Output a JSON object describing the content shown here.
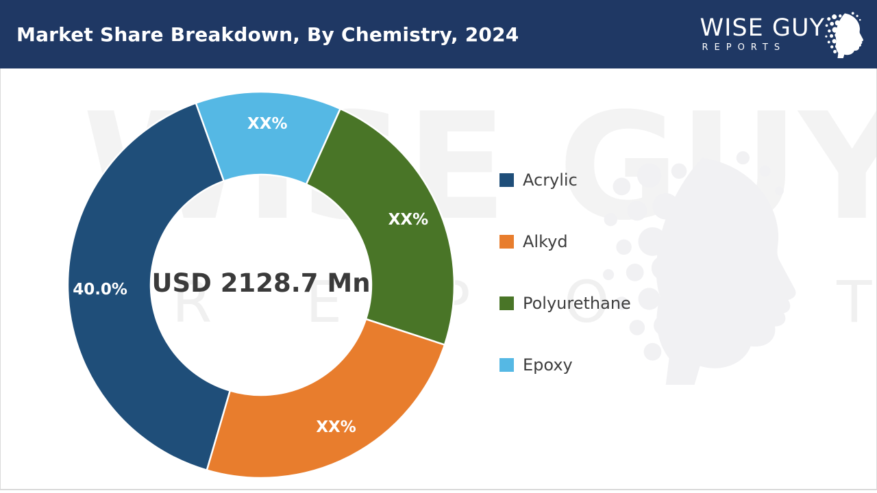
{
  "header": {
    "title": "Market Share Breakdown, By Chemistry, 2024",
    "bg_color": "#1F3864",
    "logo": {
      "line1": "WISE GUY",
      "line2": "REPORTS"
    }
  },
  "watermark": {
    "line1": "WISE GUY",
    "line2": "R E P O R T S"
  },
  "chart_data": {
    "type": "pie",
    "subtype": "donut",
    "title": "Market Share Breakdown, By Chemistry, 2024",
    "center_label": "USD 2128.7 Mn",
    "start_angle_deg": 196.3,
    "legend_position": "right",
    "slices": [
      {
        "name": "Acrylic",
        "value_pct": 40.0,
        "display_label": "40.0%",
        "color": "#1F4E79"
      },
      {
        "name": "Epoxy",
        "value_pct": 12.2,
        "display_label": "XX%",
        "color": "#55B8E4"
      },
      {
        "name": "Polyurethane",
        "value_pct": 23.3,
        "display_label": "XX%",
        "color": "#497527"
      },
      {
        "name": "Alkyd",
        "value_pct": 24.5,
        "display_label": "XX%",
        "color": "#E87D2D"
      }
    ],
    "legend": [
      {
        "label": "Acrylic"
      },
      {
        "label": "Alkyd"
      },
      {
        "label": "Polyurethane"
      },
      {
        "label": "Epoxy"
      }
    ]
  }
}
